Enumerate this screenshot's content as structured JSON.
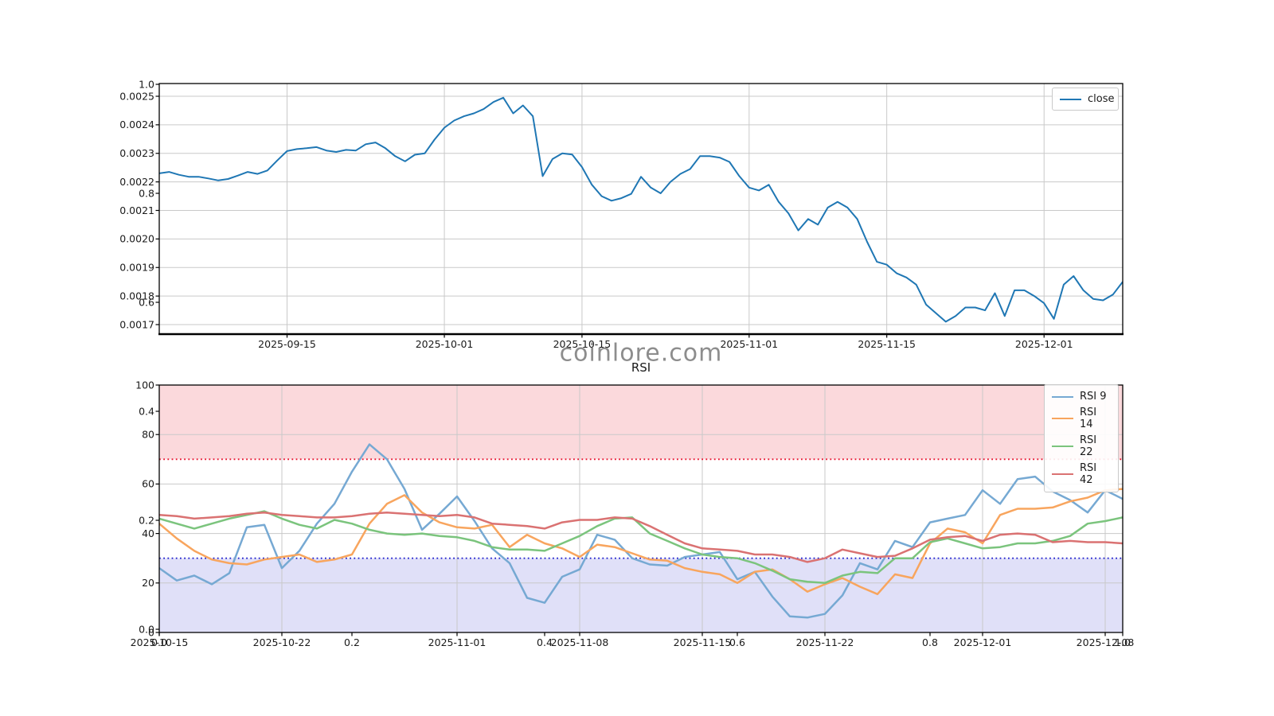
{
  "watermark": {
    "text": "coinlore.com",
    "color": "#8d8d8d"
  },
  "overlay_axis": {
    "x_tick_labels": [
      "0.0",
      "0.2",
      "0.4",
      "0.6",
      "0.8",
      "1.0"
    ],
    "y_tick_labels": [
      "1.0",
      "0.8",
      "0.6",
      "0.4",
      "0.2",
      "0.0"
    ]
  },
  "chart_data": [
    {
      "type": "line",
      "name": "price-chart",
      "title": "",
      "x_start": "2025-09-02",
      "x_end": "2025-12-09",
      "x_tick_labels": [
        "2025-09-15",
        "2025-10-01",
        "2025-10-15",
        "2025-11-01",
        "2025-11-15",
        "2025-12-01"
      ],
      "x_tick_indices": [
        13,
        29,
        43,
        60,
        74,
        90
      ],
      "y_tick_labels": [
        "0.0017",
        "0.0018",
        "0.0019",
        "0.0020",
        "0.0021",
        "0.0022",
        "0.0023",
        "0.0024",
        "0.0025"
      ],
      "y_ticks": [
        0.0017,
        0.0018,
        0.0019,
        0.002,
        0.0021,
        0.0022,
        0.0023,
        0.0024,
        0.0025
      ],
      "ylim": [
        0.0017,
        0.0025
      ],
      "grid": true,
      "legend_position": "upper right",
      "series": [
        {
          "name": "close",
          "color": "#1f77b4",
          "values": [
            0.00223,
            0.002235,
            0.002225,
            0.002218,
            0.002218,
            0.002212,
            0.002205,
            0.00221,
            0.002222,
            0.002235,
            0.002228,
            0.00224,
            0.002275,
            0.002308,
            0.002315,
            0.002318,
            0.002322,
            0.00231,
            0.002305,
            0.002312,
            0.00231,
            0.002332,
            0.002338,
            0.002318,
            0.00229,
            0.002272,
            0.002295,
            0.0023,
            0.002348,
            0.00239,
            0.002415,
            0.00243,
            0.00244,
            0.002455,
            0.00248,
            0.002495,
            0.00244,
            0.002468,
            0.00243,
            0.00222,
            0.00228,
            0.0023,
            0.002296,
            0.002252,
            0.00219,
            0.00215,
            0.002134,
            0.002143,
            0.002158,
            0.002218,
            0.00218,
            0.00216,
            0.0022,
            0.002228,
            0.002245,
            0.00229,
            0.00229,
            0.002285,
            0.00227,
            0.00222,
            0.00218,
            0.00217,
            0.00219,
            0.00213,
            0.00209,
            0.00203,
            0.00207,
            0.00205,
            0.00211,
            0.00213,
            0.00211,
            0.00207,
            0.00199,
            0.00192,
            0.00191,
            0.00188,
            0.001865,
            0.00184,
            0.00177,
            0.00174,
            0.00171,
            0.00173,
            0.00176,
            0.00176,
            0.00175,
            0.00181,
            0.00173,
            0.00182,
            0.00182,
            0.0018,
            0.001775,
            0.00172,
            0.00184,
            0.00187,
            0.00182,
            0.00179,
            0.001785,
            0.001805,
            0.00185
          ]
        }
      ]
    },
    {
      "type": "line",
      "name": "rsi-chart",
      "title": "RSI",
      "x_start": "2025-10-15",
      "x_end": "2025-12-09",
      "x_tick_labels": [
        "2025-10-15",
        "2025-10-22",
        "2025-11-01",
        "2025-11-08",
        "2025-11-15",
        "2025-11-22",
        "2025-12-01",
        "2025-12-08"
      ],
      "x_tick_indices": [
        0,
        7,
        17,
        24,
        31,
        38,
        47,
        54
      ],
      "y_tick_labels": [
        "0",
        "20",
        "40",
        "60",
        "80",
        "100"
      ],
      "y_ticks": [
        0,
        20,
        40,
        60,
        80,
        100
      ],
      "ylim": [
        0,
        100
      ],
      "grid": true,
      "legend_position": "upper right",
      "overbought_level": 70,
      "oversold_level": 30,
      "overbought_band_color": "#fbd9dc",
      "oversold_band_color": "#e0e0f8",
      "overbought_line_color": "#e8112d",
      "oversold_line_color": "#2323cc",
      "series": [
        {
          "name": "RSI 9",
          "color": "#76a9d3",
          "values": [
            26,
            21,
            23,
            19.5,
            24,
            42.5,
            43.5,
            26,
            33,
            44,
            52,
            65,
            76,
            70,
            58,
            41.5,
            48,
            55,
            45,
            34,
            28,
            14,
            12,
            22.5,
            25.5,
            39.5,
            37.5,
            30,
            27.5,
            27,
            30.5,
            31.5,
            32.5,
            21.5,
            24.5,
            14.5,
            6.5,
            6,
            7.5,
            15,
            28,
            25.5,
            37,
            34.5,
            44.5,
            46,
            47.5,
            57.5,
            52,
            62,
            63,
            57,
            53.5,
            48.5,
            57.5,
            54
          ]
        },
        {
          "name": "RSI 14",
          "color": "#f8a55e",
          "values": [
            44,
            38,
            33,
            29.5,
            28,
            27.5,
            29.5,
            30.5,
            31.5,
            28.5,
            29.5,
            31.5,
            44,
            52,
            55.5,
            48.5,
            44.5,
            42.5,
            42,
            43.5,
            34.5,
            39.5,
            36,
            34,
            30.5,
            35.5,
            34.5,
            32,
            29.5,
            29,
            26,
            24.5,
            23.5,
            20,
            24.5,
            25.5,
            21.5,
            16.5,
            19.5,
            22,
            18.5,
            15.5,
            23.5,
            22,
            36,
            42,
            40.5,
            36,
            47.5,
            50,
            50,
            50.5,
            53,
            54.5,
            57.5,
            58
          ]
        },
        {
          "name": "RSI 22",
          "color": "#7bc47d",
          "values": [
            46,
            44,
            42,
            44,
            46,
            47.5,
            49,
            46,
            43.5,
            42,
            45.5,
            44,
            41.5,
            40,
            39.5,
            40,
            39,
            38.5,
            37,
            34.5,
            33.5,
            33.5,
            33,
            36,
            39,
            43,
            46,
            46.5,
            40,
            37,
            34,
            31.5,
            30.5,
            30,
            28,
            25,
            21.5,
            20.5,
            20,
            23,
            24.5,
            24,
            30,
            30,
            36.5,
            38,
            36,
            34,
            34.5,
            36,
            36,
            37,
            39,
            44,
            45,
            46.5
          ]
        },
        {
          "name": "RSI 42",
          "color": "#da7272",
          "values": [
            47.5,
            47,
            46,
            46.5,
            47,
            48,
            48.5,
            47.5,
            47,
            46.5,
            46.5,
            47,
            48,
            48.5,
            48,
            47.5,
            47,
            47.5,
            46.5,
            44,
            43.5,
            43,
            42,
            44.5,
            45.5,
            45.5,
            46.5,
            46,
            43,
            39.5,
            36,
            34,
            33.5,
            33,
            31.5,
            31.5,
            30.5,
            28.5,
            30,
            33.5,
            32,
            30.5,
            31,
            34,
            37.5,
            38.5,
            39,
            37,
            39.5,
            40,
            39.5,
            36.5,
            37,
            36.5,
            36.5,
            36
          ]
        }
      ]
    }
  ]
}
